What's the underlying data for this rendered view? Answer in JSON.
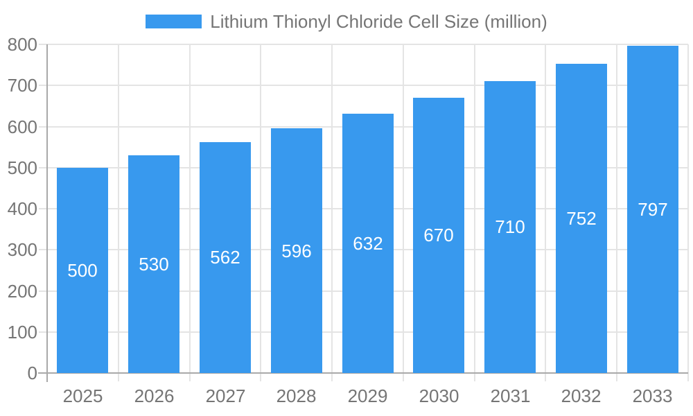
{
  "chart_data": {
    "type": "bar",
    "title": "Lithium Thionyl Chloride Cell Size (million)",
    "categories": [
      "2025",
      "2026",
      "2027",
      "2028",
      "2029",
      "2030",
      "2031",
      "2032",
      "2033"
    ],
    "values": [
      500,
      530,
      562,
      596,
      632,
      670,
      710,
      752,
      797
    ],
    "bar_labels": [
      "500",
      "530",
      "562",
      "596",
      "632",
      "670",
      "710",
      "752",
      "797"
    ],
    "xlabel": "",
    "ylabel": "",
    "ylim": [
      0,
      800
    ],
    "ytick_step": 100,
    "ytick_labels": [
      "0",
      "100",
      "200",
      "300",
      "400",
      "500",
      "600",
      "700",
      "800"
    ],
    "grid": true,
    "legend_position": "top-center",
    "colors": {
      "bar": "#3899ee",
      "bar_value_text": "#ffffff",
      "axis_text": "#757575",
      "grid_line": "#e4e4e4",
      "axis_line": "#a9a9a9",
      "background": "#ffffff"
    }
  }
}
